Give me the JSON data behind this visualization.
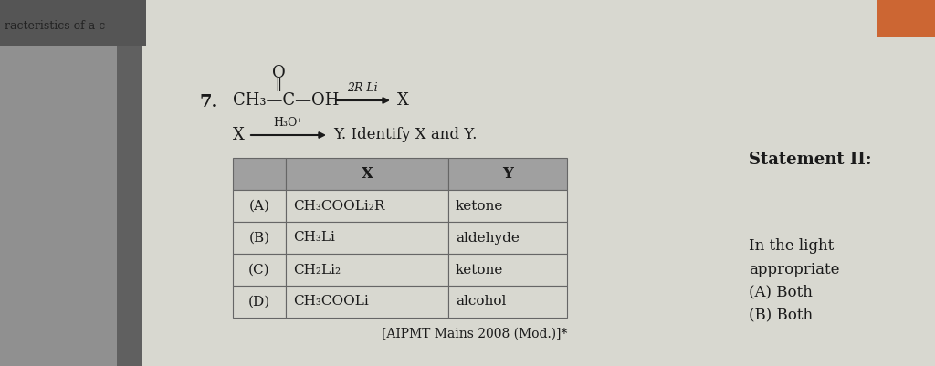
{
  "question_number": "7.",
  "table_headers": [
    "",
    "X",
    "Y"
  ],
  "rows": [
    [
      "(A)",
      "CH₃COOLi₂R",
      "ketone"
    ],
    [
      "(B)",
      "CH₃Li",
      "aldehyde"
    ],
    [
      "(C)",
      "CH₂Li₂",
      "ketone"
    ],
    [
      "(D)",
      "CH₃COOLi",
      "alcohol"
    ]
  ],
  "footer": "[AIPMT Mains 2008 (Mod.)]*",
  "statement": "Statement II:",
  "in_the_light": "In the light",
  "appropriate": "appropriate",
  "a_both": "(A) Both",
  "b_both": "(B) Both",
  "characteristics": "racteristics of a c",
  "bg_color_left": "#8a8a8a",
  "bg_color_right": "#c8c8c8",
  "paper_color": "#dcdcdc",
  "text_color": "#1a1a1a",
  "table_header_bg": "#a0a0a0",
  "table_row_bg": "#d8d8d0",
  "table_border_color": "#666666",
  "orange_top_right": "#cc6633"
}
